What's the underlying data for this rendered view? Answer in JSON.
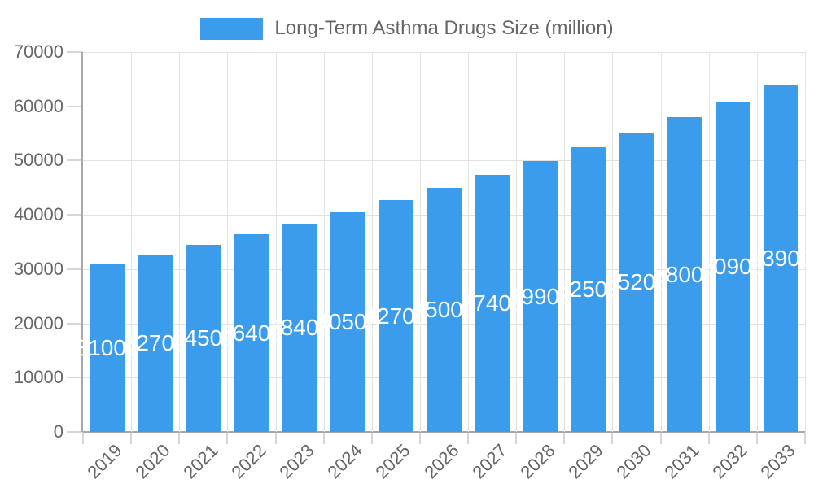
{
  "legend": {
    "label": "Long-Term Asthma Drugs Size (million)"
  },
  "colors": {
    "bar": "#3B9CEB",
    "grid": "#e3e3e3",
    "axis_line": "#a8a8a8",
    "tick": "#d6d6d6",
    "axis_text": "#666666",
    "data_label": "#ffffff"
  },
  "chart_data": {
    "type": "bar",
    "title": "Long-Term Asthma Drugs Size (million)",
    "legend_position": "top",
    "grid": true,
    "categories": [
      "2019",
      "2020",
      "2021",
      "2022",
      "2023",
      "2024",
      "2025",
      "2026",
      "2027",
      "2028",
      "2029",
      "2030",
      "2031",
      "2032",
      "2033"
    ],
    "series": [
      {
        "name": "Long-Term Asthma Drugs Size (million)",
        "values": [
          31000,
          32700,
          34500,
          36400,
          38400,
          40500,
          42700,
          45000,
          47400,
          49900,
          52500,
          55200,
          58000,
          60900,
          63900
        ]
      }
    ],
    "data_labels": [
      "31000",
      "32700",
      "34500",
      "36400",
      "38400",
      "40500",
      "42700",
      "45000",
      "47400",
      "49900",
      "52500",
      "55200",
      "58000",
      "60900",
      "63900"
    ],
    "xlabel": "",
    "ylabel": "",
    "ylim": [
      0,
      70000
    ],
    "yticks": [
      0,
      10000,
      20000,
      30000,
      40000,
      50000,
      60000,
      70000
    ],
    "ytick_labels": [
      "0",
      "10000",
      "20000",
      "30000",
      "40000",
      "50000",
      "60000",
      "70000"
    ]
  }
}
